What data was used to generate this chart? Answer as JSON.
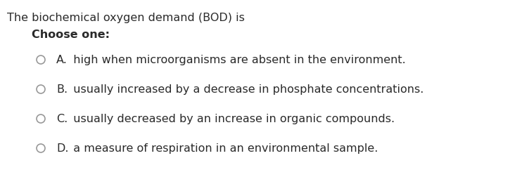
{
  "background_color": "#ffffff",
  "title_text": "The biochemical oxygen demand (BOD) is",
  "subtitle_text": "Choose one:",
  "options": [
    {
      "label": "A.",
      "text": "  high when microorganisms are absent in the environment."
    },
    {
      "label": "B.",
      "text": "  usually increased by a decrease in phosphate concentrations."
    },
    {
      "label": "C.",
      "text": "  usually decreased by an increase in organic compounds."
    },
    {
      "label": "D.",
      "text": "  a measure of respiration in an environmental sample."
    }
  ],
  "title_fontsize": 11.5,
  "subtitle_fontsize": 11.5,
  "option_fontsize": 11.5,
  "text_color": "#2a2a2a",
  "circle_color": "#999999",
  "background_color_fig": "#ffffff"
}
